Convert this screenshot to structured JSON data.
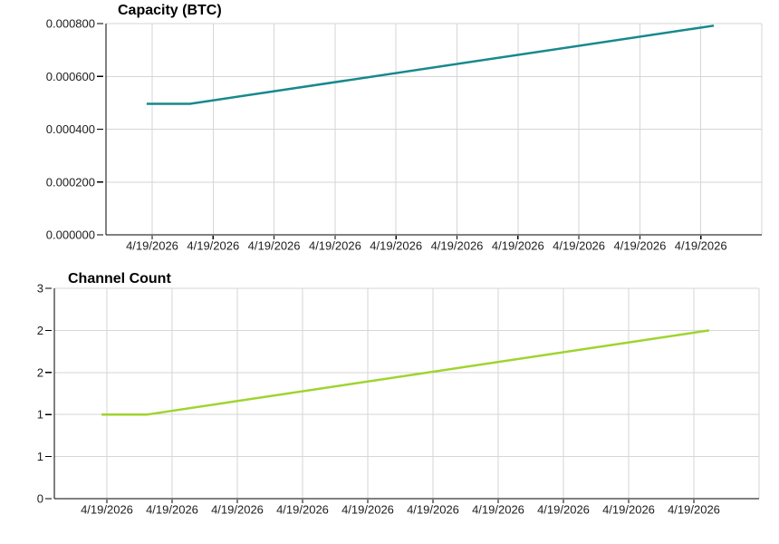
{
  "page": {
    "background": "#ffffff",
    "grid_color": "#d6d6d6",
    "axis_color": "#000000",
    "tick_label_color": "#1d1d20"
  },
  "chart_data": [
    {
      "type": "line",
      "title": "Capacity (BTC)",
      "legend_position": "none",
      "grid": true,
      "ylim": [
        0,
        0.0008
      ],
      "y_tick_labels": [
        "0.000800",
        "0.000600",
        "0.000400",
        "0.000200",
        "0.000000"
      ],
      "x_tick_labels": [
        "4/19/2026",
        "4/19/2026",
        "4/19/2026",
        "4/19/2026",
        "4/19/2026",
        "4/19/2026",
        "4/19/2026",
        "4/19/2026",
        "4/19/2026",
        "4/19/2026"
      ],
      "series": [
        {
          "name": "Capacity (BTC)",
          "color": "#17898d",
          "points": [
            {
              "xf": 0.062,
              "y": 0.000496
            },
            {
              "xf": 0.128,
              "y": 0.000496
            },
            {
              "xf": 0.927,
              "y": 0.000792
            }
          ]
        }
      ]
    },
    {
      "type": "line",
      "title": "Channel Count",
      "legend_position": "none",
      "grid": true,
      "ylim": [
        0,
        2.5
      ],
      "y_tick_labels": [
        "3",
        "2",
        "2",
        "1",
        "1",
        "0"
      ],
      "x_tick_labels": [
        "4/19/2026",
        "4/19/2026",
        "4/19/2026",
        "4/19/2026",
        "4/19/2026",
        "4/19/2026",
        "4/19/2026",
        "4/19/2026",
        "4/19/2026",
        "4/19/2026"
      ],
      "series": [
        {
          "name": "Channel Count",
          "color": "#9fd42e",
          "points": [
            {
              "xf": 0.067,
              "y": 1
            },
            {
              "xf": 0.132,
              "y": 1
            },
            {
              "xf": 0.929,
              "y": 2
            }
          ]
        }
      ]
    }
  ]
}
